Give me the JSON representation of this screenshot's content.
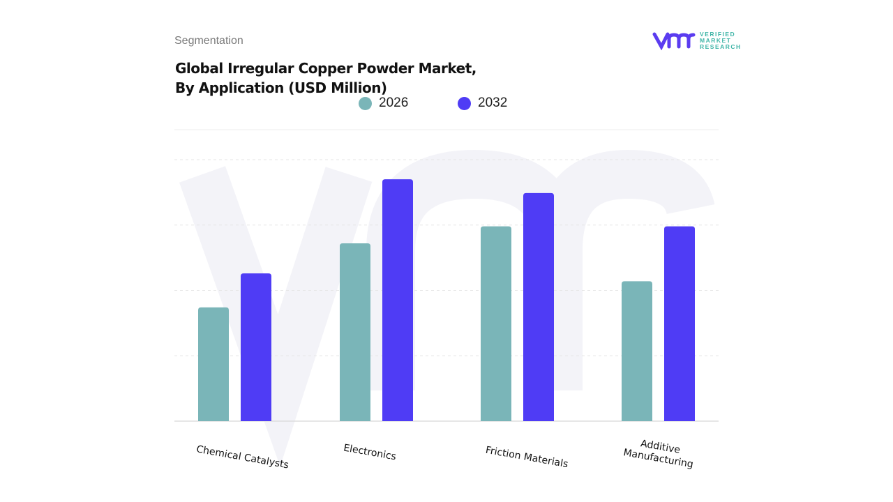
{
  "header": {
    "segment_label": "Segmentation",
    "title_line1": "Global Irregular Copper Powder Market,",
    "title_line2": "By Application (USD Million)"
  },
  "logo": {
    "line1": "VERIFIED",
    "line2": "MARKET",
    "line3": "RESEARCH",
    "brand_color": "#5b3cf0",
    "accent_color": "#3fb5a7"
  },
  "chart_data": {
    "type": "bar",
    "title": "Global Irregular Copper Powder Market, By Application (USD Million)",
    "categories": [
      "Chemical Catalysts",
      "Electronics",
      "Friction Materials",
      "Additive Manufacturing"
    ],
    "series": [
      {
        "name": "2026",
        "color": "#7ab5b8",
        "values": [
          1.74,
          2.72,
          2.98,
          2.14
        ]
      },
      {
        "name": "2032",
        "color": "#4f3cf5",
        "values": [
          2.26,
          3.7,
          3.49,
          2.98
        ]
      }
    ],
    "ylim": [
      0,
      4
    ],
    "grid": true,
    "legend_position": "top"
  }
}
